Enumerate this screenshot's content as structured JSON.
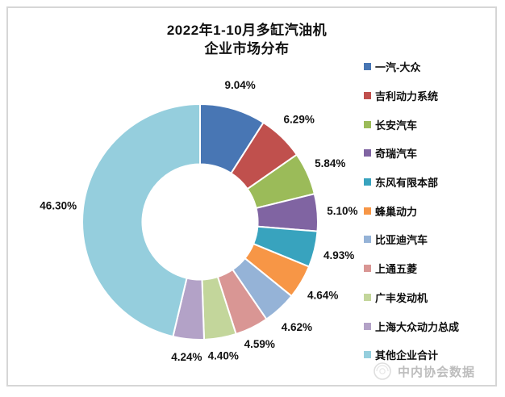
{
  "title": {
    "line1": "2022年1-10月多缸汽油机",
    "line2": "企业市场分布"
  },
  "watermark": {
    "text": "中内协会数据",
    "logo": "association-seal-icon"
  },
  "chart_data": {
    "type": "pie",
    "subtype": "donut",
    "title": "2022年1-10月多缸汽油机 企业市场分布",
    "categories": [
      "一汽-大众",
      "吉利动力系统",
      "长安汽车",
      "奇瑞汽车",
      "东风有限本部",
      "蜂巢动力",
      "比亚迪汽车",
      "上通五菱",
      "广丰发动机",
      "上海大众动力总成",
      "其他企业合计"
    ],
    "values": [
      9.04,
      6.29,
      5.84,
      5.1,
      4.93,
      4.64,
      4.62,
      4.59,
      4.4,
      4.24,
      46.3
    ],
    "value_labels": [
      "9.04%",
      "6.29%",
      "5.84%",
      "5.10%",
      "4.93%",
      "4.64%",
      "4.62%",
      "4.59%",
      "4.40%",
      "4.24%",
      "46.30%"
    ],
    "colors": [
      "#4876B4",
      "#C0504D",
      "#9BBB59",
      "#8064A2",
      "#38A3BE",
      "#F79646",
      "#95B3D7",
      "#D99694",
      "#C3D69B",
      "#B3A2C7",
      "#95CEDD"
    ],
    "legend_position": "right",
    "start_angle_deg": 0,
    "clockwise": true,
    "donut_hole_ratio": 0.49,
    "slice_border_color": "#FFFFFF",
    "label_color": "#111111",
    "grid": false
  }
}
